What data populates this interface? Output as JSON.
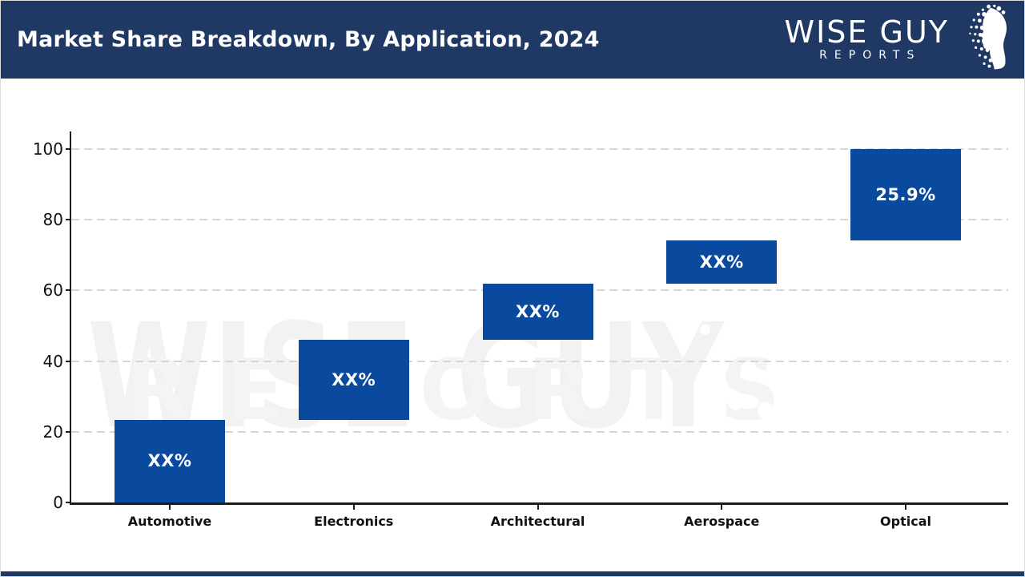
{
  "page": {
    "background": "#ffffff",
    "border_color": "#dcdcdc"
  },
  "header": {
    "title": "Market Share Breakdown, By Application, 2024",
    "bg_color": "#1f3864",
    "title_color": "#ffffff"
  },
  "logo": {
    "line1": "WISE GUY",
    "line2": "REPORTS",
    "color": "#ffffff"
  },
  "footer": {
    "bg_color": "#1f3864"
  },
  "watermark": {
    "line1": "WISE GUY",
    "line2": "REPORTS",
    "text_color": "#f2f2f2",
    "face_color": "#efefef"
  },
  "chart_data": {
    "type": "bar",
    "variant": "waterfall",
    "title": "Market Share Breakdown, By Application, 2024",
    "categories": [
      "Automotive",
      "Electronics",
      "Architectural",
      "Aerospace",
      "Optical"
    ],
    "segments": [
      {
        "category": "Automotive",
        "start": 0,
        "end": 23.4,
        "size": 23.4,
        "label": "XX%"
      },
      {
        "category": "Electronics",
        "start": 23.4,
        "end": 46.1,
        "size": 22.7,
        "label": "XX%"
      },
      {
        "category": "Architectural",
        "start": 46.1,
        "end": 61.8,
        "size": 15.7,
        "label": "XX%"
      },
      {
        "category": "Aerospace",
        "start": 61.8,
        "end": 74.1,
        "size": 12.3,
        "label": "XX%"
      },
      {
        "category": "Optical",
        "start": 74.1,
        "end": 100,
        "size": 25.9,
        "label": "25.9%"
      }
    ],
    "xlabel": "",
    "ylabel": "",
    "yticks": [
      0,
      20,
      40,
      60,
      80,
      100
    ],
    "ylim": [
      0,
      105
    ],
    "grid": "horizontal-dashed",
    "legend": "none",
    "bar_color": "#0a4a9e",
    "bar_label_color": "#ffffff",
    "axis_color": "#1c1c1c",
    "gridline_color": "#d6d6d6"
  }
}
